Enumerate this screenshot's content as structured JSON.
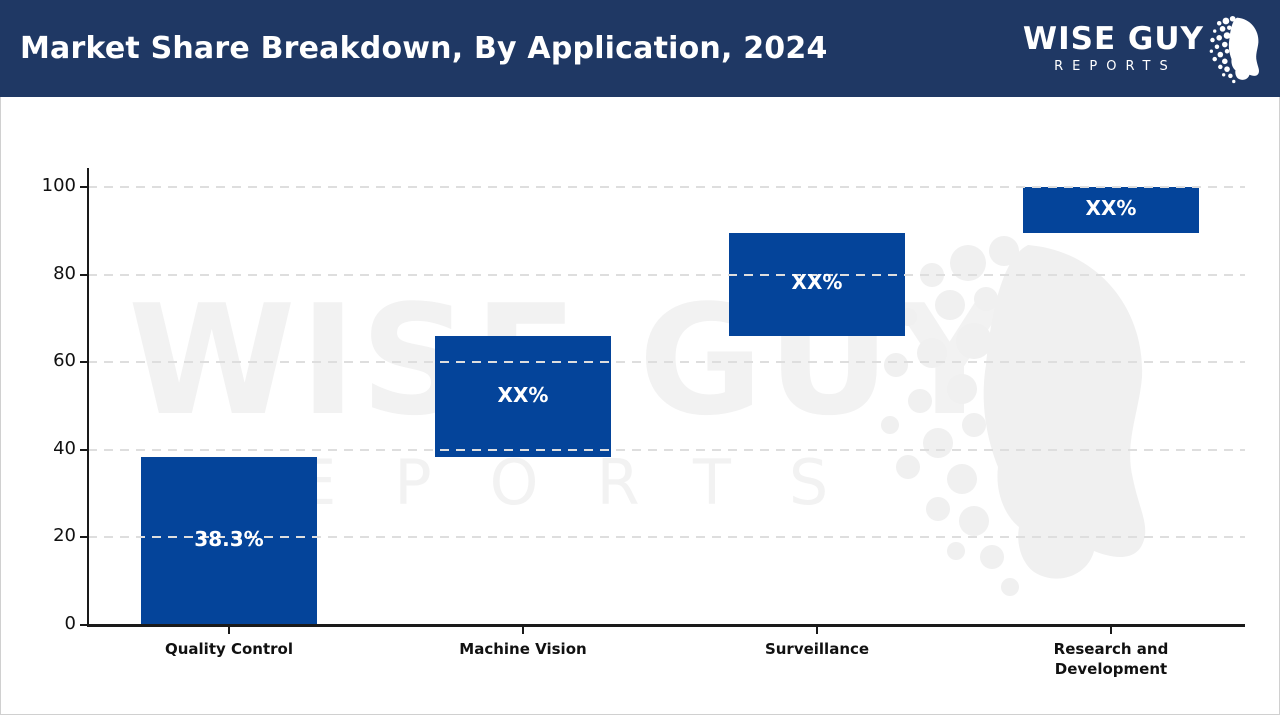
{
  "header": {
    "title": "Market Share Breakdown, By Application, 2024",
    "logo": {
      "wordmark": "WISE GUY",
      "subtext": "REPORTS"
    }
  },
  "watermark": {
    "line1": "WISE GUY",
    "line2": "REPORTS"
  },
  "chart_data": {
    "type": "bar",
    "subtype": "waterfall",
    "title": "Market Share Breakdown, By Application, 2024",
    "xlabel": "",
    "ylabel": "",
    "ylim": [
      0,
      100
    ],
    "yticks": [
      0,
      20,
      40,
      60,
      80,
      100
    ],
    "grid": "horizontal-dashed",
    "legend": null,
    "categories": [
      "Quality Control",
      "Machine Vision",
      "Surveillance",
      "Research and Development"
    ],
    "segments": [
      {
        "category": "Quality Control",
        "start": 0,
        "end": 38.3,
        "value": 38.3,
        "label": "38.3%"
      },
      {
        "category": "Machine Vision",
        "start": 38.3,
        "end": 66.0,
        "value": 27.7,
        "label": "XX%"
      },
      {
        "category": "Surveillance",
        "start": 66.0,
        "end": 89.5,
        "value": 23.5,
        "label": "XX%"
      },
      {
        "category": "Research and Development",
        "start": 89.5,
        "end": 100,
        "value": 10.5,
        "label": "XX%"
      }
    ],
    "bar_color": "#04449a",
    "bar_label_color": "#ffffff"
  },
  "colors": {
    "header_bg": "#1f3864",
    "bar": "#04449a",
    "grid": "#dedede",
    "axis": "#1a1a1a",
    "text": "#111111",
    "watermark": "#f2f2f2",
    "frame_border": "#d0d0d0"
  }
}
